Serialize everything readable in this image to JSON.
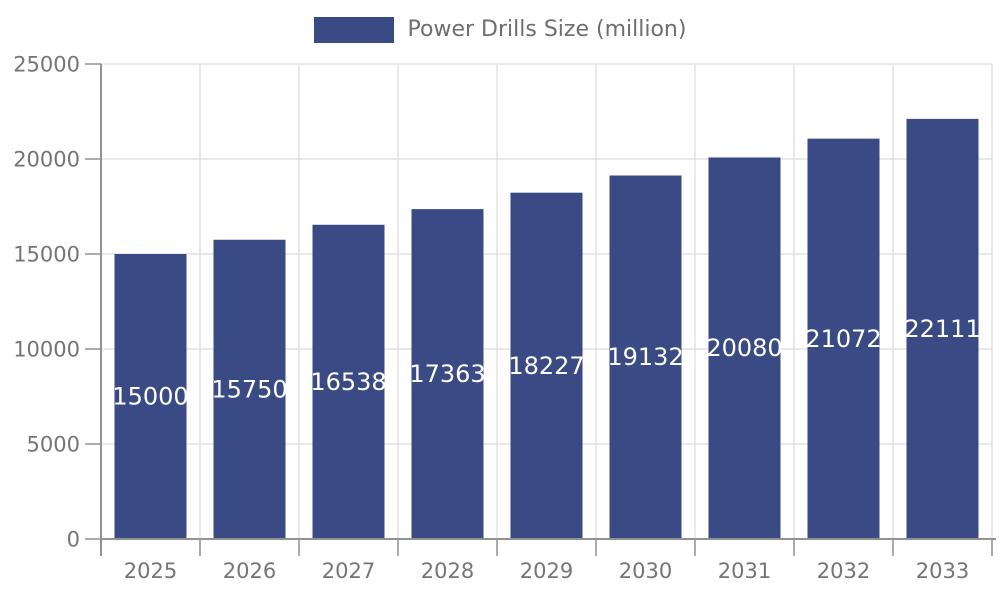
{
  "legend": {
    "label": "Power Drills Size (million)"
  },
  "colors": {
    "background": "#ffffff",
    "bar": "#3a4a84",
    "grid": "#e2e2e2",
    "axis": "#919191",
    "tick_label": "#757575",
    "value_label": "#ffffff",
    "legend_label": "#6e6e6e"
  },
  "chart_data": {
    "type": "bar",
    "title": "",
    "series_name": "Power Drills Size (million)",
    "categories": [
      "2025",
      "2026",
      "2027",
      "2028",
      "2029",
      "2030",
      "2031",
      "2032",
      "2033"
    ],
    "values": [
      15000,
      15750,
      16538,
      17363,
      18227,
      19132,
      20080,
      21072,
      22111
    ],
    "xlabel": "",
    "ylabel": "",
    "ylim": [
      0,
      25000
    ],
    "yticks": [
      0,
      5000,
      10000,
      15000,
      20000,
      25000
    ],
    "grid": true,
    "legend_position": "top-center",
    "value_labels": "inside-center"
  }
}
